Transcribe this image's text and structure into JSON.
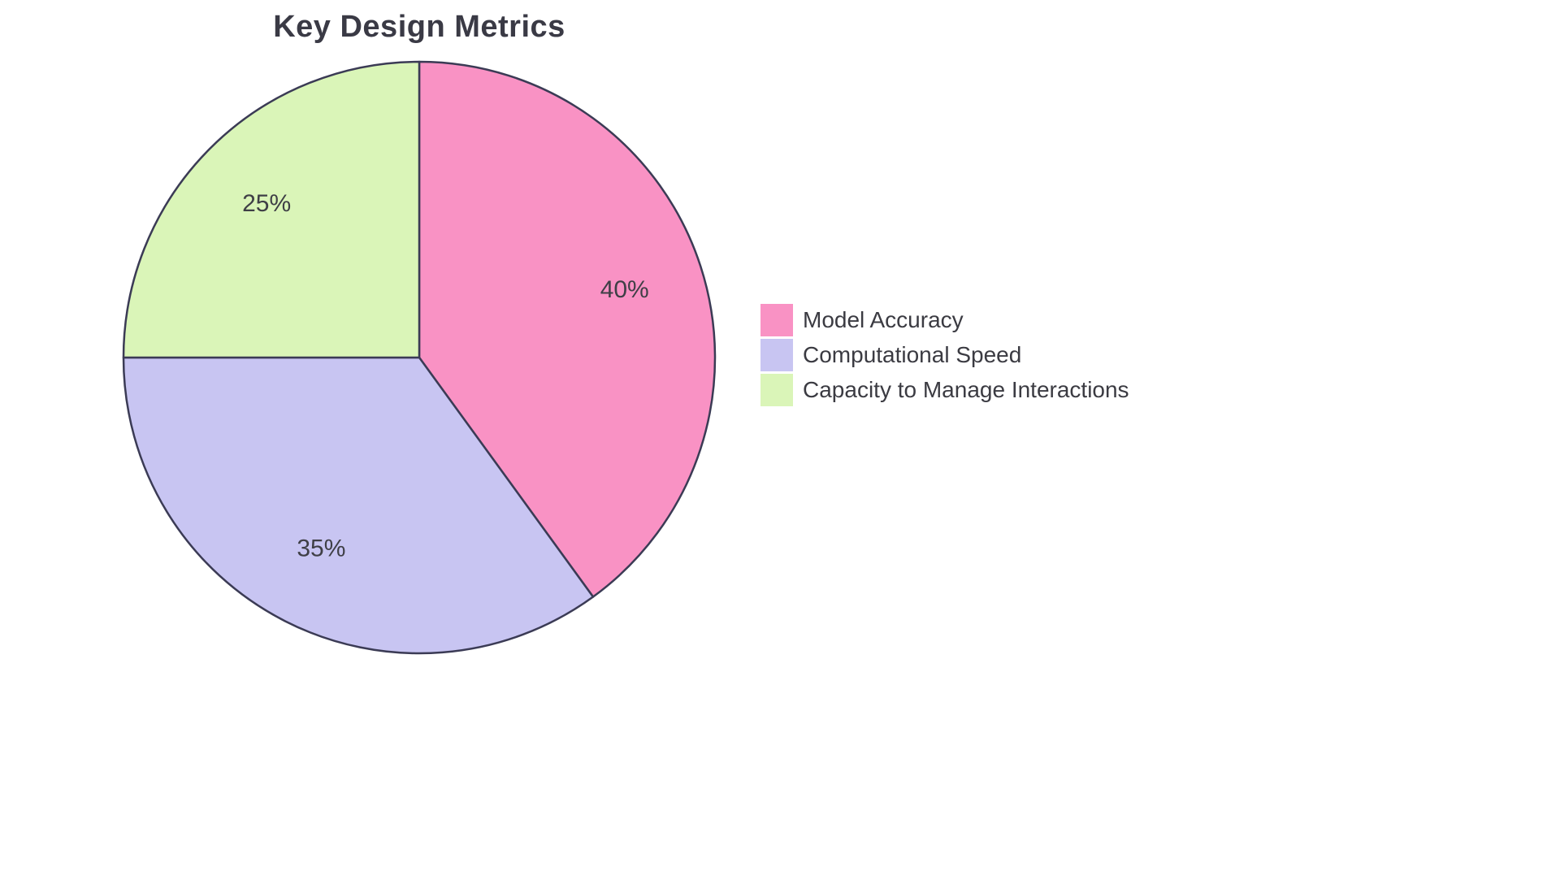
{
  "chart_data": {
    "type": "pie",
    "title": "Key Design Metrics",
    "slices": [
      {
        "label": "Model Accuracy",
        "value": 40,
        "display": "40%",
        "color": "#F992C4"
      },
      {
        "label": "Computational Speed",
        "value": 35,
        "display": "35%",
        "color": "#C8C5F2"
      },
      {
        "label": "Capacity to Manage Interactions",
        "value": 25,
        "display": "25%",
        "color": "#DAF5B8"
      }
    ],
    "start_angle_deg": 0,
    "direction": "clockwise",
    "legend_position": "right",
    "grid": false,
    "stroke_color": "#3B3B55",
    "stroke_width": 2.5,
    "label_color": "#3F3F46",
    "title_color": "#3A3A45",
    "background_color": "#FFFFFF"
  }
}
